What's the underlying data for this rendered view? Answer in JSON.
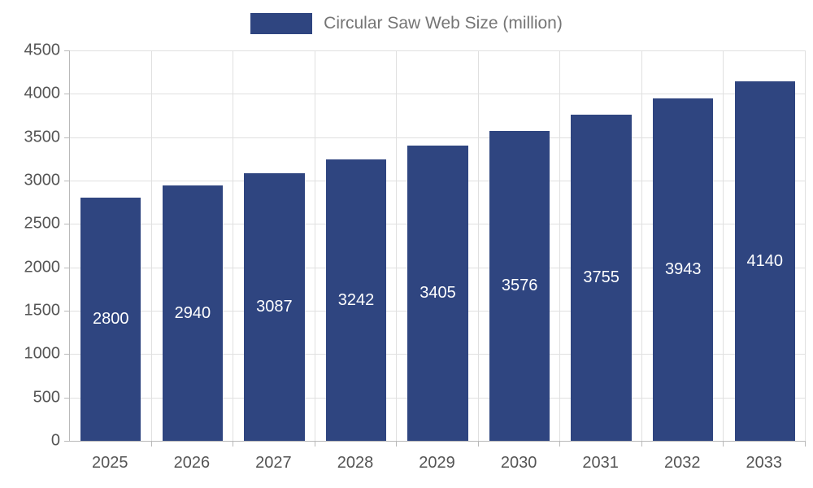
{
  "colors": {
    "bar": "#2f4580",
    "bar_label": "#ffffff",
    "grid": "#e0e0e0",
    "axis": "#b9b9b9",
    "tick_text": "#555555",
    "legend_text": "#757575",
    "background": "#ffffff"
  },
  "chart_data": {
    "type": "bar",
    "title": "Circular Saw Web Size (million)",
    "categories": [
      "2025",
      "2026",
      "2027",
      "2028",
      "2029",
      "2030",
      "2031",
      "2032",
      "2033"
    ],
    "values": [
      2800,
      2940,
      3087,
      3242,
      3405,
      3576,
      3755,
      3943,
      4140
    ],
    "xlabel": "",
    "ylabel": "",
    "ylim": [
      0,
      4500
    ],
    "yticks": [
      0,
      500,
      1000,
      1500,
      2000,
      2500,
      3000,
      3500,
      4000,
      4500
    ],
    "grid": true,
    "legend_position": "top",
    "bar_value_labels": "inside-center"
  }
}
